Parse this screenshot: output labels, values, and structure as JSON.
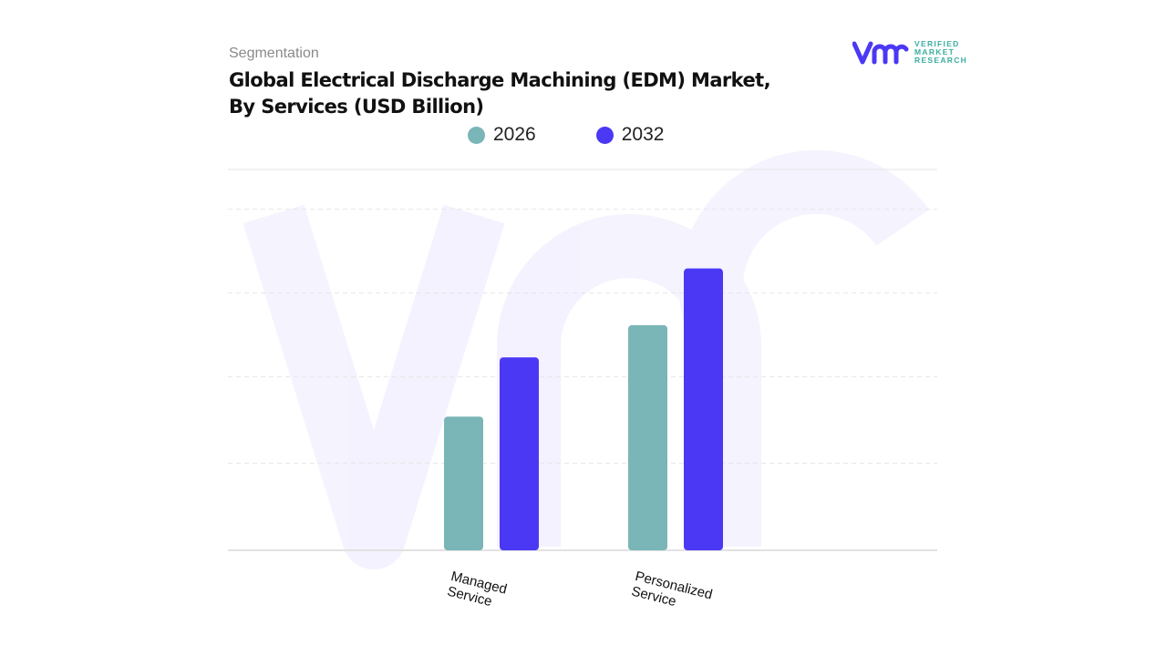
{
  "header": {
    "segment_label": "Segmentation",
    "title": "Global Electrical Discharge Machining (EDM) Market, By Services (USD Billion)"
  },
  "logo": {
    "text": [
      "VERIFIED",
      "MARKET",
      "RESEARCH"
    ],
    "mark": "vmr"
  },
  "chart_data": {
    "type": "bar",
    "title": "Global Electrical Discharge Machining (EDM) Market, By Services (USD Billion)",
    "categories": [
      "Managed\nService",
      "Personalized\nService"
    ],
    "series": [
      {
        "name": "2026",
        "color": "#7ab5b7",
        "values": [
          1.58,
          2.66
        ]
      },
      {
        "name": "2032",
        "color": "#4b38f5",
        "values": [
          2.28,
          3.33
        ]
      }
    ],
    "ylim": [
      0,
      4.5
    ],
    "grid": true,
    "y_tick_labels_shown": false,
    "legend_position": "top"
  }
}
